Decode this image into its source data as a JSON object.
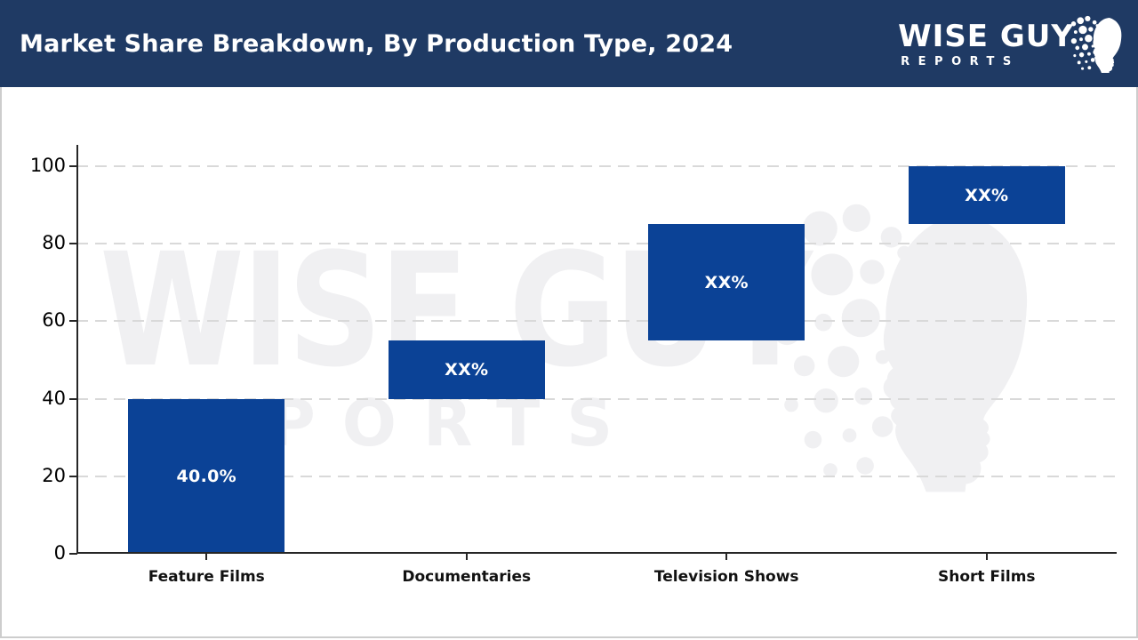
{
  "header": {
    "title": "Market Share Breakdown, By Production Type, 2024",
    "logo": {
      "line1": "WISE GUY",
      "line2": "REPORTS"
    }
  },
  "watermark": {
    "line1": "WISE GUY",
    "line2": "PORTS"
  },
  "chart_data": {
    "type": "bar",
    "subtype": "waterfall-floating-bars",
    "title": "Market Share Breakdown, By Production Type, 2024",
    "categories": [
      "Feature Films",
      "Documentaries",
      "Television Shows",
      "Short Films"
    ],
    "series": [
      {
        "name": "Market Share (%)",
        "segments": [
          {
            "category": "Feature Films",
            "start": 0,
            "end": 40,
            "value": 40,
            "label": "40.0%"
          },
          {
            "category": "Documentaries",
            "start": 40,
            "end": 55,
            "value": 15,
            "label": "XX%"
          },
          {
            "category": "Television Shows",
            "start": 55,
            "end": 85,
            "value": 30,
            "label": "XX%"
          },
          {
            "category": "Short Films",
            "start": 85,
            "end": 100,
            "value": 15,
            "label": "XX%"
          }
        ]
      }
    ],
    "ylim": [
      0,
      100
    ],
    "yticks": [
      0,
      20,
      40,
      60,
      80,
      100
    ],
    "xlabel": "",
    "ylabel": "",
    "grid": "horizontal-dashed",
    "legend": "none",
    "colors": {
      "bar": "#0b4296",
      "bar_label": "#ffffff",
      "grid": "#d9d9d9",
      "axis": "#262626",
      "header_bg": "#1f3a64",
      "watermark": "#f0f0f2",
      "figure_border": "#cdcdcd"
    }
  }
}
